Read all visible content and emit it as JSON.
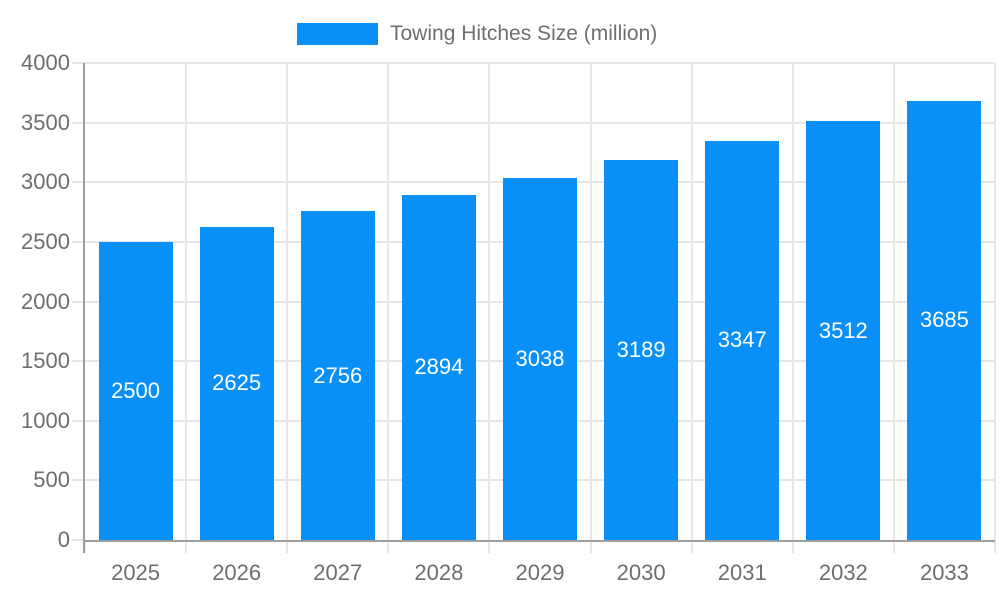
{
  "chart_data": {
    "type": "bar",
    "title": "Towing Hitches Size (million)",
    "legend": {
      "position": "top",
      "entries": [
        "Towing Hitches Size (million)"
      ]
    },
    "categories": [
      "2025",
      "2026",
      "2027",
      "2028",
      "2029",
      "2030",
      "2031",
      "2032",
      "2033"
    ],
    "series": [
      {
        "name": "Towing Hitches Size (million)",
        "values": [
          2500,
          2625,
          2756,
          2894,
          3038,
          3189,
          3347,
          3512,
          3685
        ]
      }
    ],
    "bar_value_labels": [
      "2500",
      "2625",
      "2756",
      "2894",
      "3038",
      "3189",
      "3347",
      "3512",
      "3685"
    ],
    "xlabel": "",
    "ylabel": "",
    "ylim": [
      0,
      4000
    ],
    "yticks": [
      0,
      500,
      1000,
      1500,
      2000,
      2500,
      3000,
      3500,
      4000
    ],
    "grid": true,
    "colors": {
      "bar": "#0890f8",
      "bar_label_text": "#ffffff",
      "grid_line": "#e6e6e6",
      "axis_line": "#9e9e9e",
      "tick_text": "#6e6e6e",
      "legend_text": "#6e6e6e",
      "background": "#ffffff"
    }
  }
}
